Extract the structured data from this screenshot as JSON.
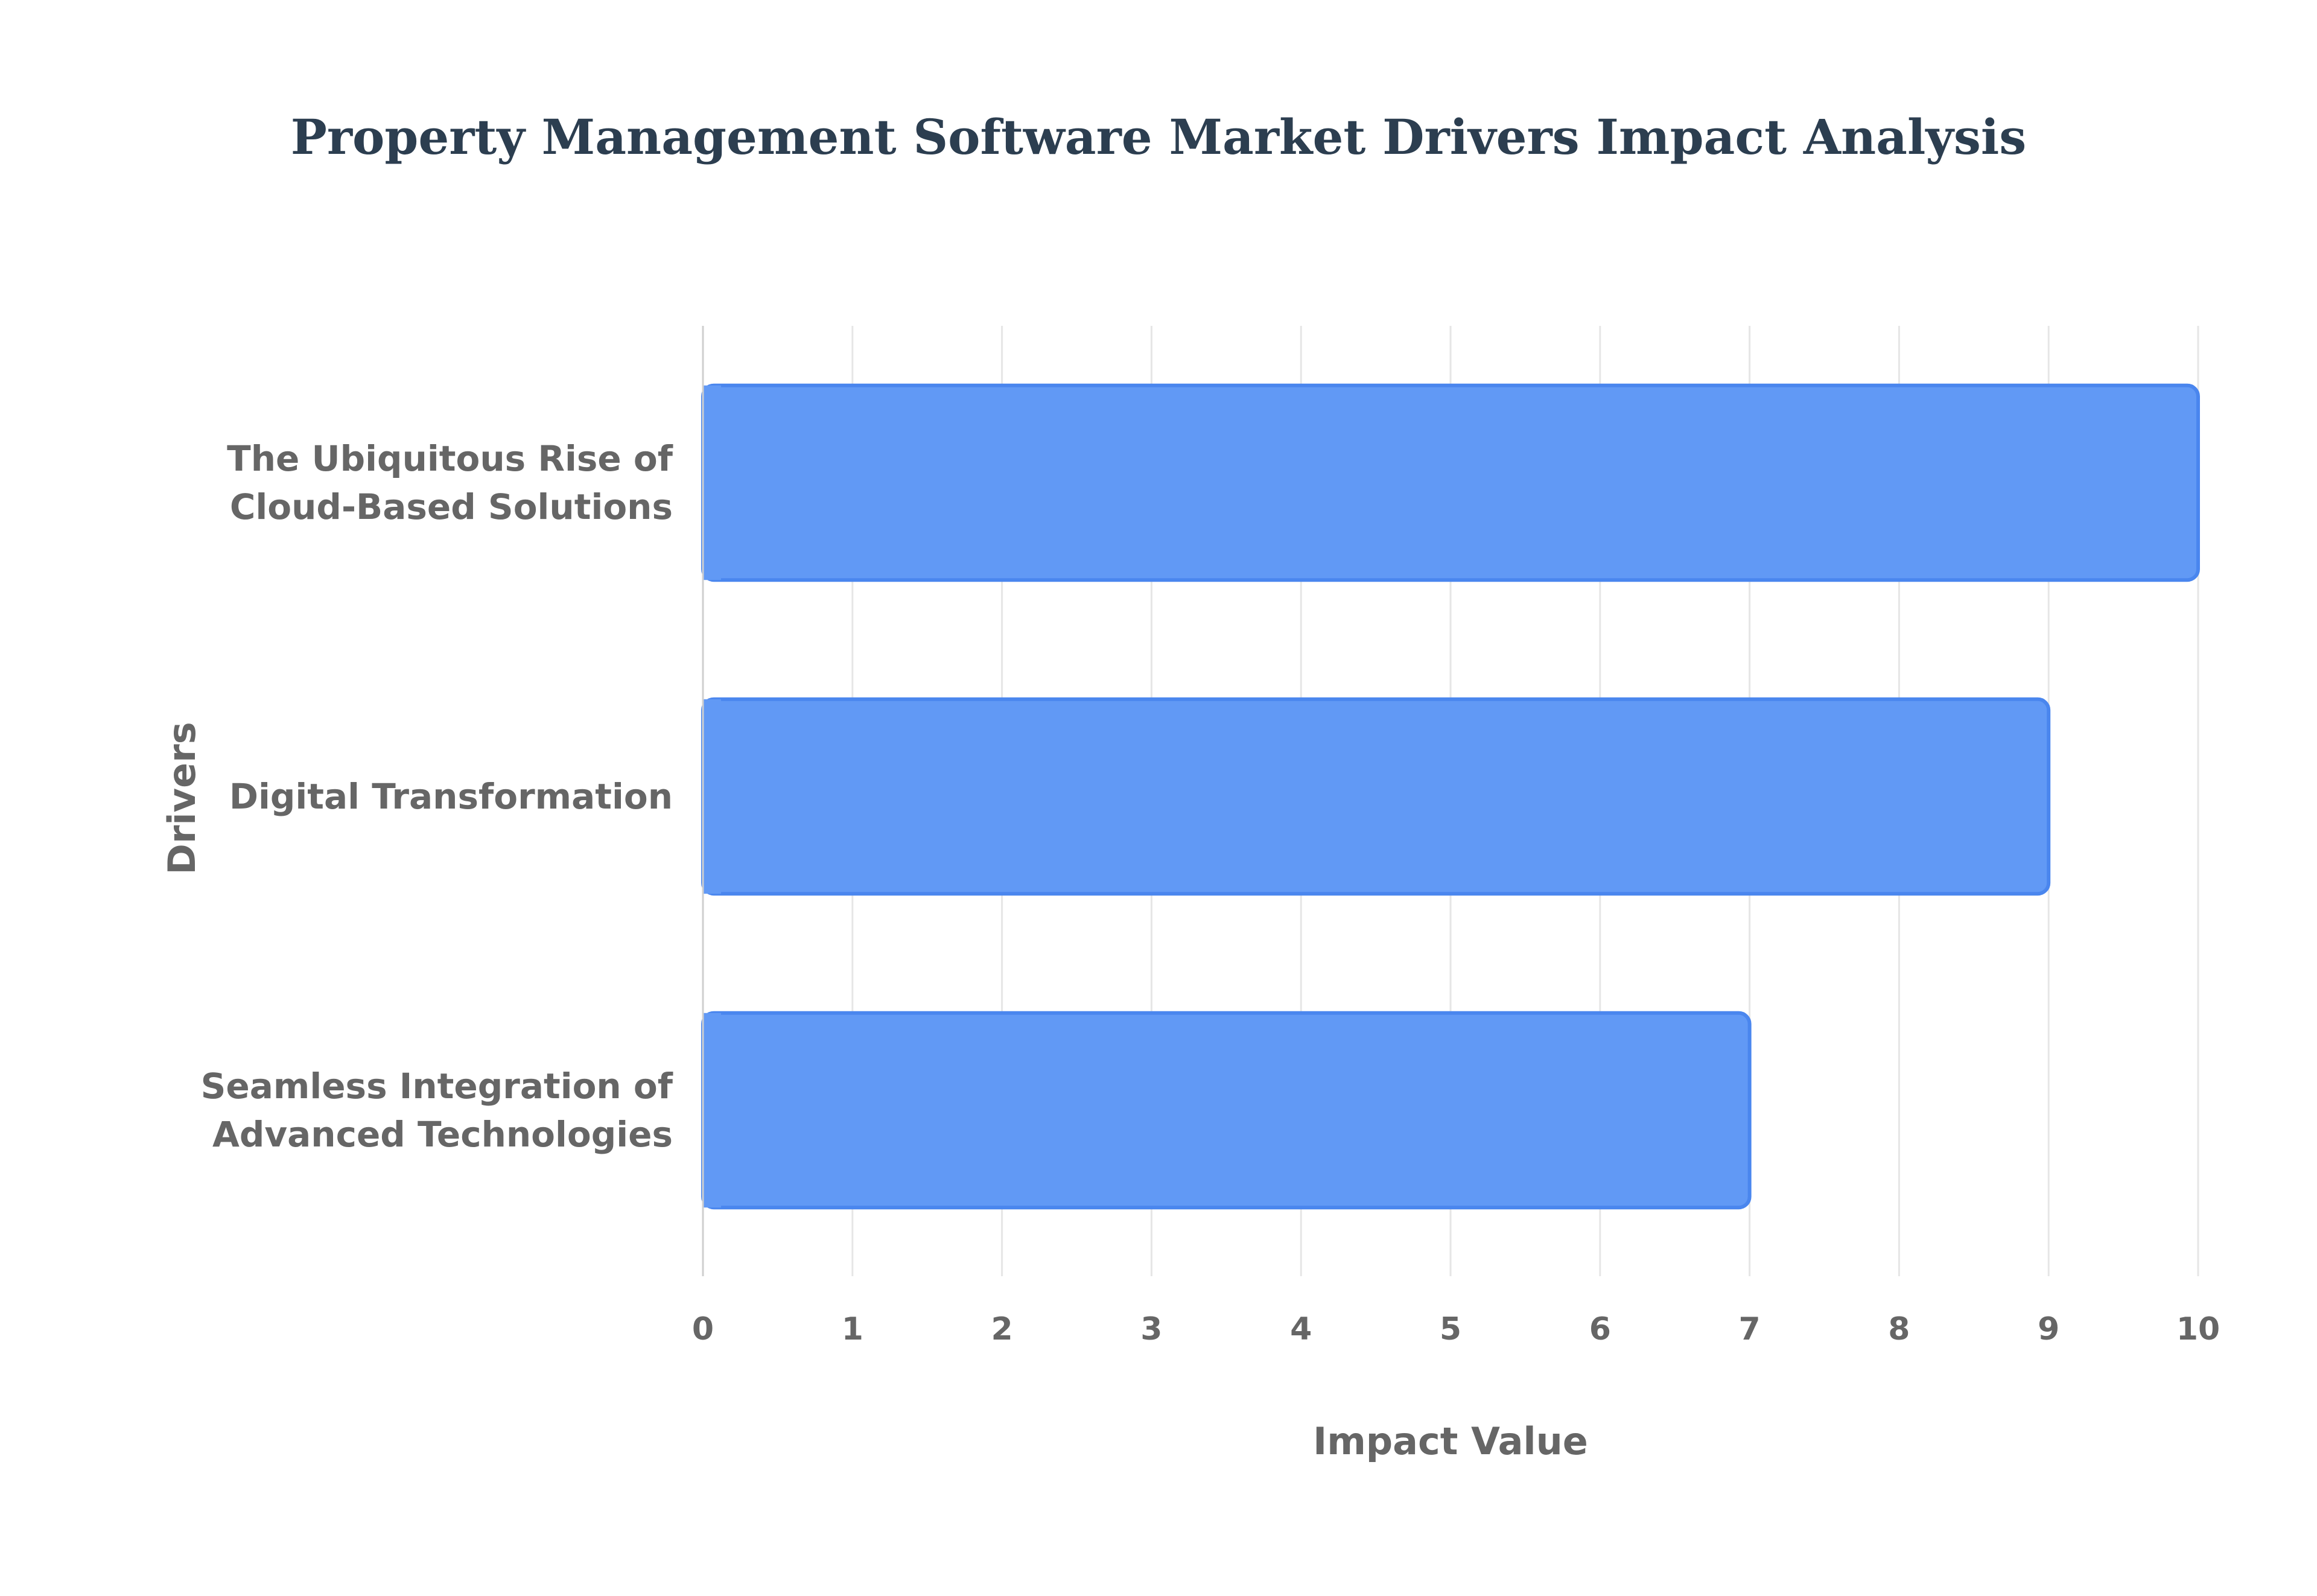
{
  "chart_data": {
    "type": "bar",
    "orientation": "horizontal",
    "title": "Property Management Software Market Drivers Impact Analysis",
    "xlabel": "Impact Value",
    "ylabel": "Drivers",
    "xlim": [
      0,
      10
    ],
    "x_ticks": [
      0,
      1,
      2,
      3,
      4,
      5,
      6,
      7,
      8,
      9,
      10
    ],
    "categories": [
      [
        "The Ubiquitous Rise of",
        "Cloud-Based Solutions"
      ],
      [
        "Digital Transformation"
      ],
      [
        "Seamless Integration of",
        "Advanced Technologies"
      ]
    ],
    "values": [
      10,
      9,
      7
    ],
    "bar_color": "#6199f5",
    "bar_border_color": "#4a86ee",
    "grid": true,
    "legend": "none"
  }
}
